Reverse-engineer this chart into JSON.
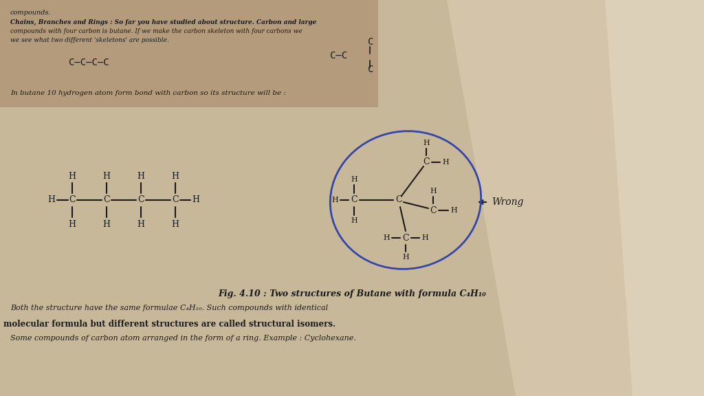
{
  "bg_color": "#c8b89a",
  "title_text": "Fig. 4.10 : Two structures of Butane with formula C₄H₁₀",
  "line1": "Both the structure have the same formulae C₄H₁₀. Such compounds with identical",
  "line2": "molecular formula but different structures are called structural isomers.",
  "line3": "Some compounds of carbon atom arranged in the form of a ring. Example : Cyclohexane.",
  "header_text": "compounds.",
  "chains_branches_text": "Chains, Branches and Rings : So far you have studied about structure. Carbon and large",
  "chains_branches_line2": "compounds with four carbon is butane. If we make the carbon skeleton with four carbons we",
  "chains_branches_line3": "we see what two different 'skeletons' are possible.",
  "butane_label": "In butane 10 hydrogen atom form bond with carbon so its structure will be :",
  "text_color": "#1a1a1a",
  "structure_color": "#1a1a1a",
  "oval_color": "#3344aa",
  "wrong_text": "Wrong"
}
